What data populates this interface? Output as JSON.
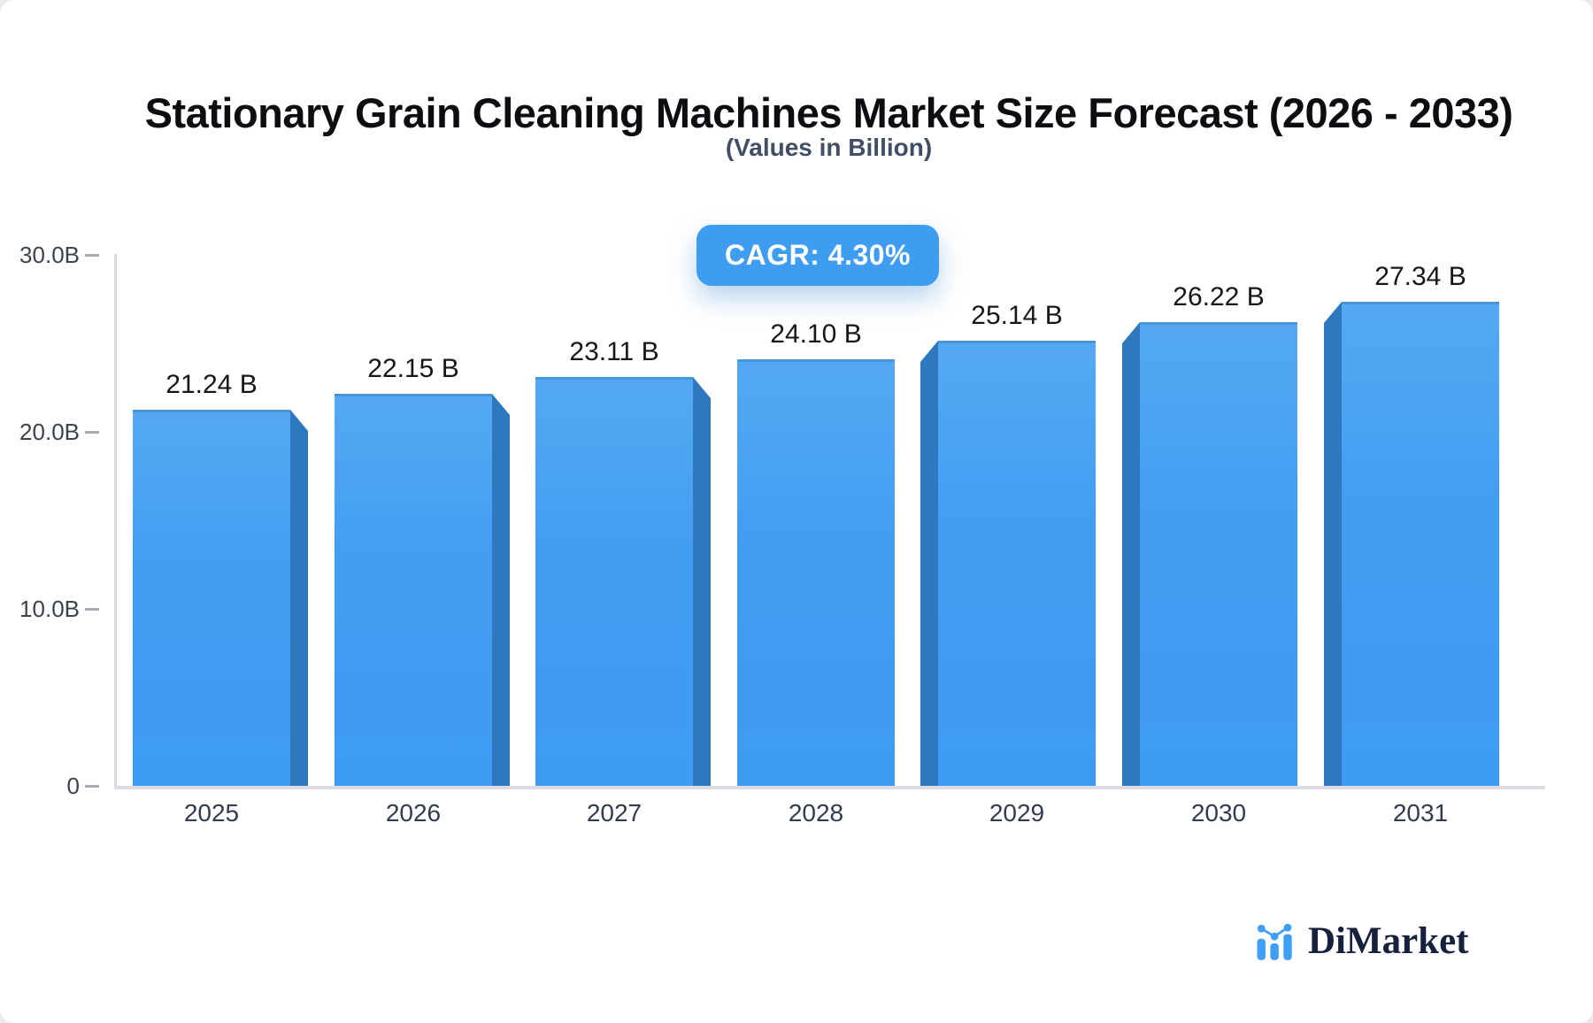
{
  "title": "Stationary Grain Cleaning Machines Market Size Forecast (2026 - 2033)",
  "subtitle": "(Values in Billion)",
  "badge": {
    "label": "CAGR: 4.30%"
  },
  "logo": {
    "text": "DiMarket"
  },
  "colors": {
    "bar_face": "#45a0f2",
    "bar_side": "#2e79be",
    "badge_bg": "#3f9df1",
    "axis_gray": "#d6dade",
    "logo_blue": "#3e9ff5",
    "logo_navy": "#16213d"
  },
  "chart_data": {
    "type": "bar",
    "title": "Stationary Grain Cleaning Machines Market Size Forecast (2026 - 2033)",
    "subtitle": "(Values in Billion)",
    "categories": [
      "2025",
      "2026",
      "2027",
      "2028",
      "2029",
      "2030",
      "2031"
    ],
    "values": [
      21.24,
      22.15,
      23.11,
      24.1,
      25.14,
      26.22,
      27.34
    ],
    "value_labels": [
      "21.24 B",
      "22.15 B",
      "23.11 B",
      "24.10 B",
      "25.14 B",
      "26.22 B",
      "27.34 B"
    ],
    "xlabel": "",
    "ylabel": "",
    "ylim": [
      0,
      30
    ],
    "y_ticks": [
      {
        "label": "30.0B",
        "value": 30
      },
      {
        "label": "20.0B",
        "value": 20
      },
      {
        "label": "10.0B",
        "value": 10
      },
      {
        "label": "0",
        "value": 0
      }
    ],
    "grid": false,
    "legend": false,
    "annotations": [
      "CAGR: 4.30%"
    ]
  }
}
